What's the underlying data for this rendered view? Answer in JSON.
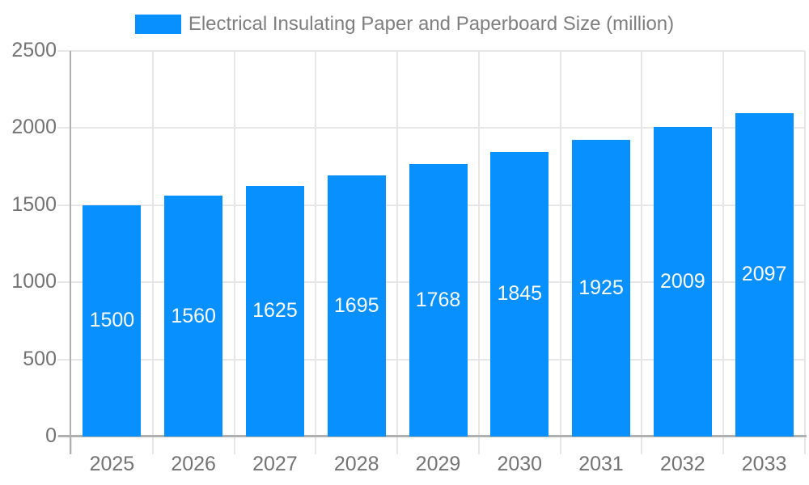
{
  "legend": {
    "series_label": "Electrical Insulating Paper and Paperboard Size (million)"
  },
  "chart_data": {
    "type": "bar",
    "title": "Electrical Insulating Paper and Paperboard Size (million)",
    "series_name": "Electrical Insulating Paper and Paperboard Size (million)",
    "categories": [
      "2025",
      "2026",
      "2027",
      "2028",
      "2029",
      "2030",
      "2031",
      "2032",
      "2033"
    ],
    "values": [
      1500,
      1560,
      1625,
      1695,
      1768,
      1845,
      1925,
      2009,
      2097
    ],
    "bar_labels": [
      "1500",
      "1560",
      "1625",
      "1695",
      "1768",
      "1845",
      "1925",
      "2009",
      "2097"
    ],
    "xlabel": "",
    "ylabel": "",
    "ylim": [
      0,
      2500
    ],
    "yticks": [
      0,
      500,
      1000,
      1500,
      2000,
      2500
    ],
    "grid": true,
    "legend_position": "top",
    "colors": {
      "bar": "#0990ff",
      "bar_value_text": "#ffffff",
      "grid": "#e6e6e6",
      "axis": "#b0b0b0",
      "tick_text": "#737373",
      "legend_text": "#7f7f7f",
      "background": "#ffffff"
    }
  }
}
